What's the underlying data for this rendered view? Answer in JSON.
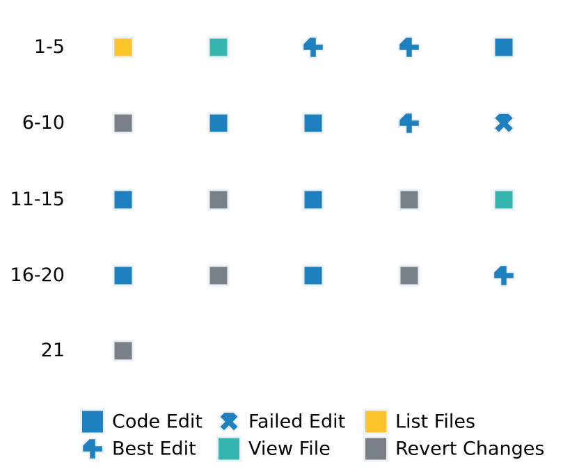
{
  "chart_data": {
    "type": "scatter",
    "title": "",
    "xlabel": "",
    "ylabel": "",
    "grid": false,
    "legend_position": "bottom",
    "rows": [
      {
        "label": "1-5",
        "markers": [
          "list_files",
          "view_file",
          "best_edit",
          "best_edit",
          "code_edit"
        ]
      },
      {
        "label": "6-10",
        "markers": [
          "revert_changes",
          "code_edit",
          "code_edit",
          "best_edit",
          "failed_edit"
        ]
      },
      {
        "label": "11-15",
        "markers": [
          "code_edit",
          "revert_changes",
          "code_edit",
          "revert_changes",
          "view_file"
        ]
      },
      {
        "label": "16-20",
        "markers": [
          "code_edit",
          "revert_changes",
          "code_edit",
          "revert_changes",
          "best_edit"
        ]
      },
      {
        "label": "21",
        "markers": [
          "revert_changes"
        ]
      }
    ],
    "actions": {
      "code_edit": {
        "label": "Code Edit",
        "shape": "square",
        "color": "#1e80be"
      },
      "best_edit": {
        "label": "Best Edit",
        "shape": "plus",
        "color": "#1e80be"
      },
      "failed_edit": {
        "label": "Failed Edit",
        "shape": "x",
        "color": "#1e80be"
      },
      "view_file": {
        "label": "View File",
        "shape": "square",
        "color": "#35b5ae"
      },
      "list_files": {
        "label": "List Files",
        "shape": "square",
        "color": "#fdc32b"
      },
      "revert_changes": {
        "label": "Revert Changes",
        "shape": "square",
        "color": "#7a8088"
      }
    },
    "legend_columns": [
      [
        "code_edit",
        "best_edit"
      ],
      [
        "failed_edit",
        "view_file"
      ],
      [
        "list_files",
        "revert_changes"
      ]
    ]
  },
  "colors": {
    "background": "#ffffff",
    "marker_halo": "#ebf2f7",
    "text": "#000000"
  }
}
